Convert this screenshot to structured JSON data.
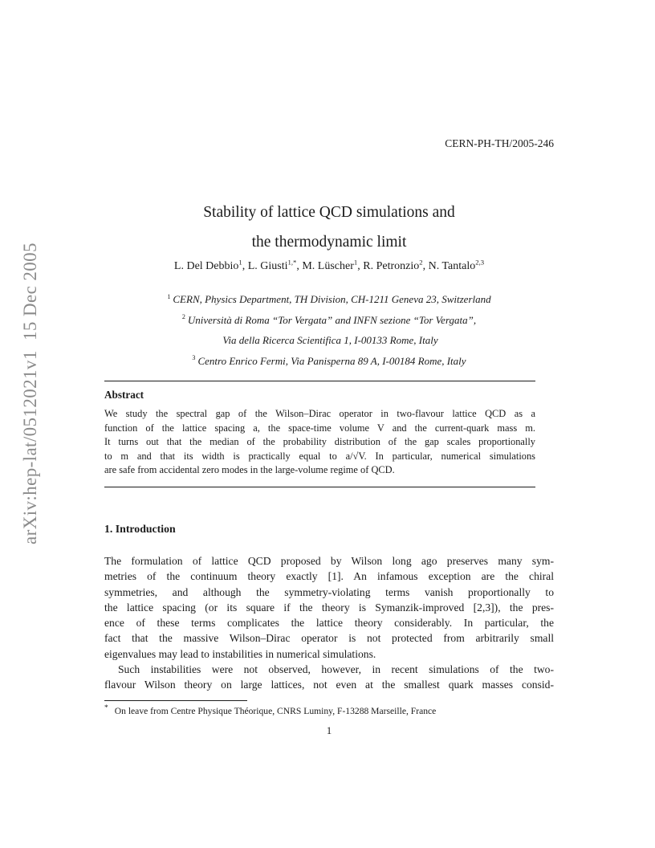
{
  "header": {
    "report_number": "CERN-PH-TH/2005-246"
  },
  "sidebar": {
    "arxiv_label": "arXiv:hep-lat/0512021v1  15 Dec 2005"
  },
  "title_block": {
    "title_line1": "Stability of lattice QCD simulations and",
    "title_line2": "the thermodynamic limit",
    "authors": [
      {
        "name": "L. Del Debbio",
        "sup": "1",
        "sep": ", "
      },
      {
        "name": "L. Giusti",
        "sup": "1,*",
        "sep": ", "
      },
      {
        "name": "M. Lüscher",
        "sup": "1",
        "sep": ", "
      },
      {
        "name": "R. Petronzio",
        "sup": "2",
        "sep": ", "
      },
      {
        "name": "N. Tantalo",
        "sup": "2,3",
        "sep": ""
      }
    ],
    "affiliations": [
      {
        "sup": "1",
        "text": "CERN, Physics Department, TH Division, CH-1211 Geneva 23, Switzerland"
      },
      {
        "sup": "2",
        "text": "Università di Roma “Tor Vergata” and INFN sezione “Tor Vergata”,"
      },
      {
        "sup": "",
        "text": "Via della Ricerca Scientifica 1, I-00133 Rome, Italy"
      },
      {
        "sup": "3",
        "text": "Centro Enrico Fermi, Via Panisperna 89 A, I-00184 Rome, Italy"
      }
    ]
  },
  "abstract": {
    "heading": "Abstract",
    "lines": [
      "We study the spectral gap of the Wilson–Dirac operator in two-flavour lattice QCD as a",
      "function of the lattice spacing a, the space-time volume V and the current-quark mass m.",
      "It turns out that the median of the probability distribution of the gap scales proportionally",
      "to m and that its width is practically equal to a/√V. In particular, numerical simulations",
      "are safe from accidental zero modes in the large-volume regime of QCD."
    ]
  },
  "introduction": {
    "heading": "1. Introduction",
    "p1_lines": [
      "The formulation of lattice QCD proposed by Wilson long ago preserves many sym-",
      "metries of the continuum theory exactly [1]. An infamous exception are the chiral",
      "symmetries, and although the symmetry-violating terms vanish proportionally to",
      "the lattice spacing (or its square if the theory is Symanzik-improved [2,3]), the pres-",
      "ence of these terms complicates the lattice theory considerably. In particular, the",
      "fact that the massive Wilson–Dirac operator is not protected from arbitrarily small",
      "eigenvalues may lead to instabilities in numerical simulations."
    ],
    "p2_lines": [
      "Such instabilities were not observed, however, in recent simulations of the two-",
      "flavour Wilson theory on large lattices, not even at the smallest quark masses consid-"
    ]
  },
  "footnote": {
    "marker": "*",
    "text": "On leave from Centre Physique Théorique, CNRS Luminy, F-13288 Marseille, France"
  },
  "page": {
    "number": "1"
  }
}
